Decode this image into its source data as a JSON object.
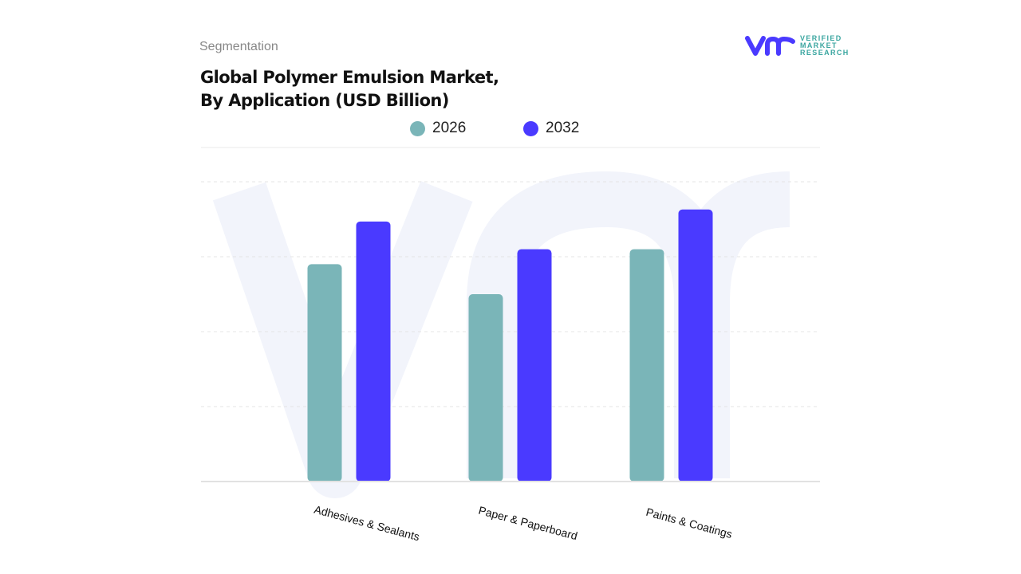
{
  "header": {
    "segment_label": "Segmentation",
    "title_line1": "Global Polymer Emulsion Market,",
    "title_line2": "By Application (USD Billion)"
  },
  "logo": {
    "line1": "VERIFIED",
    "line2": "MARKET",
    "line3": "RESEARCH",
    "mark": "vmr"
  },
  "colors": {
    "s2026": "#7ab5b8",
    "s2032": "#4a3aff",
    "grid": "#e6e6e6",
    "watermark": "#f2f4fb"
  },
  "chart_data": {
    "type": "bar",
    "title": "Global Polymer Emulsion Market, By Application (USD Billion)",
    "categories": [
      "Adhesives & Sealants",
      "Paper & Paperboard",
      "Paints & Coatings"
    ],
    "series": [
      {
        "name": "2026",
        "values": [
          2.9,
          2.5,
          3.1
        ]
      },
      {
        "name": "2032",
        "values": [
          3.47,
          3.1,
          3.63
        ]
      }
    ],
    "ylim": [
      0,
      4
    ],
    "grid": true,
    "legend": "top-center",
    "y_tick_labels_shown": false
  }
}
